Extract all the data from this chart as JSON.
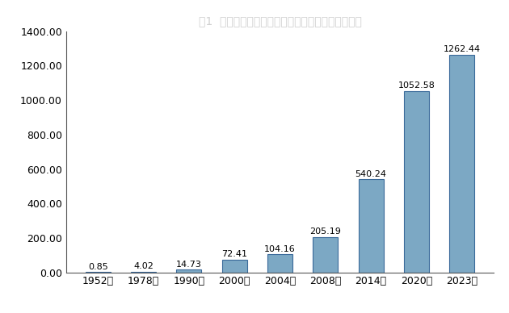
{
  "title": "图1  新中国成立以来主要年份保出生产总值（亿元）",
  "categories": [
    "1952年",
    "1978年",
    "1990年",
    "2000年",
    "2004年",
    "2008年",
    "2014年",
    "2020年",
    "2023年"
  ],
  "values": [
    0.85,
    4.02,
    14.73,
    72.41,
    104.16,
    205.19,
    540.24,
    1052.58,
    1262.44
  ],
  "bar_color": "#7ca8c4",
  "bar_edge_color": "#3a6a9a",
  "ylim": [
    0,
    1400
  ],
  "yticks": [
    0,
    200,
    400,
    600,
    800,
    1000,
    1200,
    1400
  ],
  "ytick_labels": [
    "0.00",
    "200.00",
    "400.00",
    "600.00",
    "800.00",
    "1000.00",
    "1200.00",
    "1400.00"
  ],
  "background_color": "#ffffff",
  "title_color": "#d0d0d0",
  "title_fontsize": 10,
  "tick_fontsize": 9,
  "value_fontsize": 8
}
